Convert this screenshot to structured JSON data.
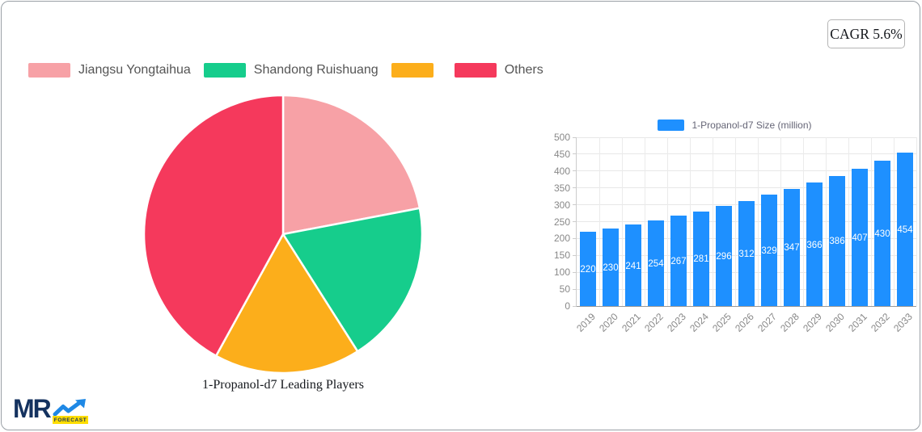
{
  "cagr_badge": "CAGR 5.6%",
  "pie_title": "1-Propanol-d7 Leading Players",
  "pie_legend": [
    {
      "label": "Jiangsu Yongtaihua",
      "color": "#F7A1A6"
    },
    {
      "label": "Shandong Ruishuang",
      "color": "#16CD8C"
    },
    {
      "label": "",
      "color": "#FCAE1B"
    },
    {
      "label": "Others",
      "color": "#F5395C"
    }
  ],
  "logo": {
    "mr": "MR",
    "forecast": "FORECAST",
    "colors": {
      "navy": "#14325F",
      "arrow_blue": "#1E88E5",
      "yellow": "#FFDD00"
    }
  },
  "chart_data": [
    {
      "type": "pie",
      "title": "1-Propanol-d7 Leading Players",
      "start_angle_deg": 0,
      "direction": "clockwise",
      "slices": [
        {
          "label": "Jiangsu Yongtaihua",
          "value": 22,
          "color": "#F7A1A6"
        },
        {
          "label": "Shandong Ruishuang",
          "value": 19,
          "color": "#16CD8C"
        },
        {
          "label": "",
          "value": 17,
          "color": "#FCAE1B"
        },
        {
          "label": "Others",
          "value": 42,
          "color": "#F5395C"
        }
      ]
    },
    {
      "type": "bar",
      "legend": "1-Propanol-d7 Size (million)",
      "legend_position": "top",
      "bar_color": "#1E90FF",
      "grid": true,
      "value_labels": "white, centered inside bars",
      "categories": [
        "2019",
        "2020",
        "2021",
        "2022",
        "2023",
        "2024",
        "2025",
        "2026",
        "2027",
        "2028",
        "2029",
        "2030",
        "2031",
        "2032",
        "2033"
      ],
      "values": [
        220,
        230,
        241,
        254,
        267,
        281,
        296,
        312,
        329,
        347,
        366,
        386,
        407,
        430,
        454
      ],
      "ylim": [
        0,
        500
      ],
      "yticks": [
        0,
        50,
        100,
        150,
        200,
        250,
        300,
        350,
        400,
        450,
        500
      ]
    }
  ]
}
